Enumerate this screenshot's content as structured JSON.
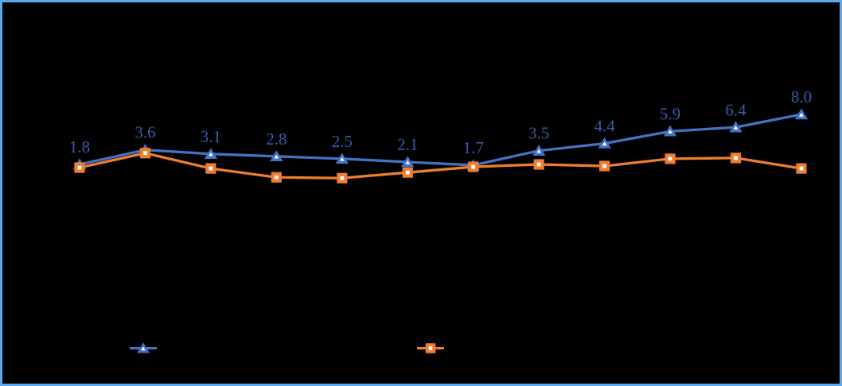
{
  "window": {
    "border_color": "#58A9F0",
    "background_color": "#000000"
  },
  "chart_data": {
    "type": "line",
    "x_count": 12,
    "grid": false,
    "axes_text_visible": false,
    "legend": {
      "position": "bottom",
      "entries": [
        {
          "series": 0,
          "marker": "triangle"
        },
        {
          "series": 1,
          "marker": "square"
        }
      ]
    },
    "series": [
      {
        "name": "blue-triangle-series",
        "color": "#4472C4",
        "marker": "triangle",
        "marker_inner_color": "#FFFFFF",
        "values": [
          1.8,
          3.6,
          3.1,
          2.8,
          2.5,
          2.1,
          1.7,
          3.5,
          4.4,
          5.9,
          6.4,
          8.0
        ],
        "data_labels": [
          "1.8",
          "3.6",
          "3.1",
          "2.8",
          "2.5",
          "2.1",
          "1.7",
          "3.5",
          "4.4",
          "5.9",
          "6.4",
          "8.0"
        ],
        "data_label_color": "#3A5CA9"
      },
      {
        "name": "orange-square-series",
        "color": "#ED7D31",
        "marker": "square",
        "marker_inner_color": "#FFFFFF",
        "estimated": true,
        "values": [
          1.4,
          3.2,
          1.3,
          0.2,
          0.1,
          0.8,
          1.5,
          1.8,
          1.6,
          2.5,
          2.6,
          1.3
        ],
        "data_labels": []
      }
    ]
  }
}
